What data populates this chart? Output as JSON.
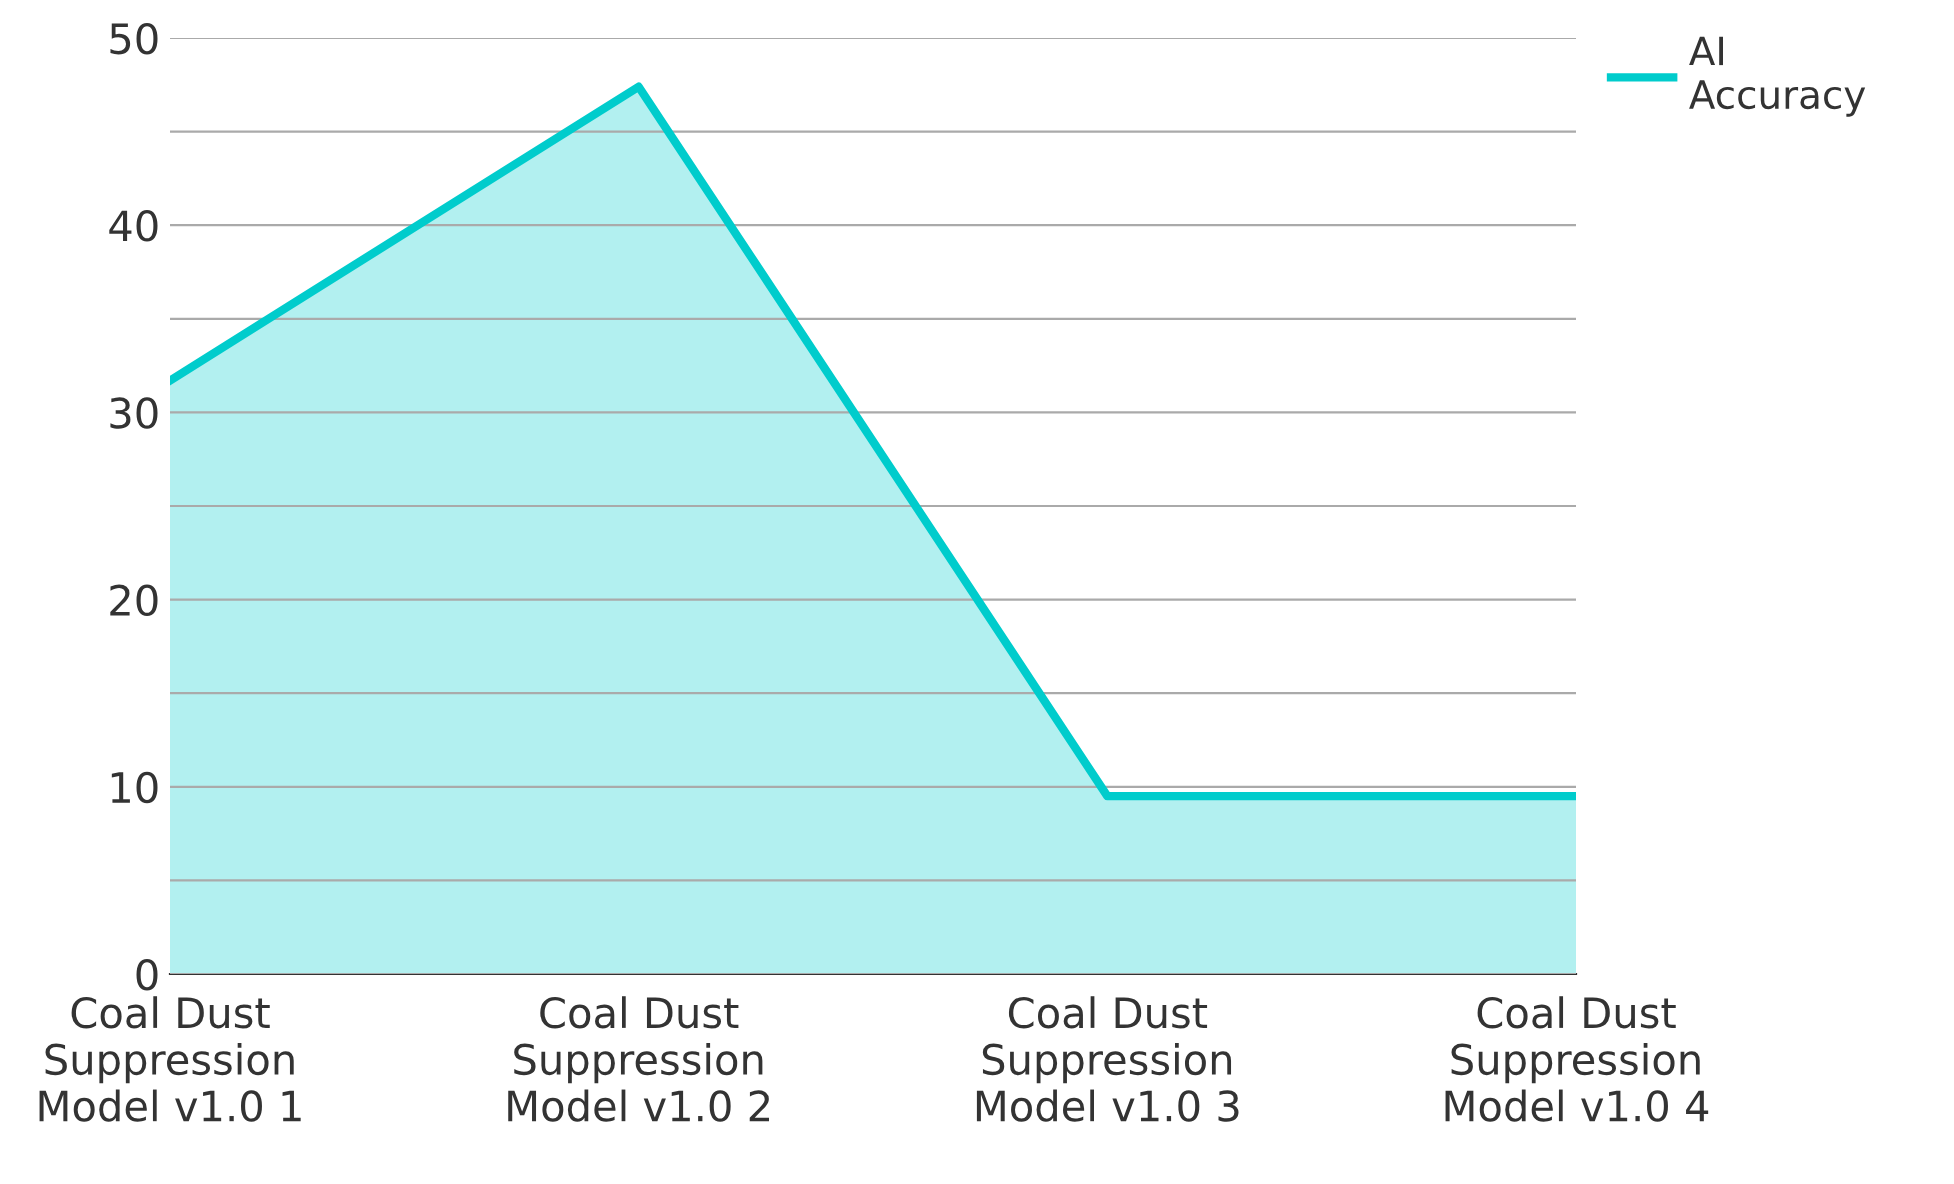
{
  "chart_data": {
    "type": "area",
    "categories": [
      "Coal Dust Suppression Model v1.0 1",
      "Coal Dust Suppression Model v1.0 2",
      "Coal Dust Suppression Model v1.0 3",
      "Coal Dust Suppression Model v1.0 4"
    ],
    "series": [
      {
        "name": "AI Accuracy",
        "color": "#00cccc",
        "values": [
          31.7,
          47.4,
          9.5,
          9.5
        ]
      }
    ],
    "ylim": [
      0,
      50
    ],
    "yticks": [
      0,
      {
        "value": 5,
        "label": null
      },
      10,
      {
        "value": 15,
        "label": null
      },
      20,
      {
        "value": 25,
        "label": null
      },
      30,
      {
        "value": 35,
        "label": null
      },
      40,
      {
        "value": 45,
        "label": null
      },
      50
    ],
    "grid": "y",
    "legend": "top right"
  }
}
